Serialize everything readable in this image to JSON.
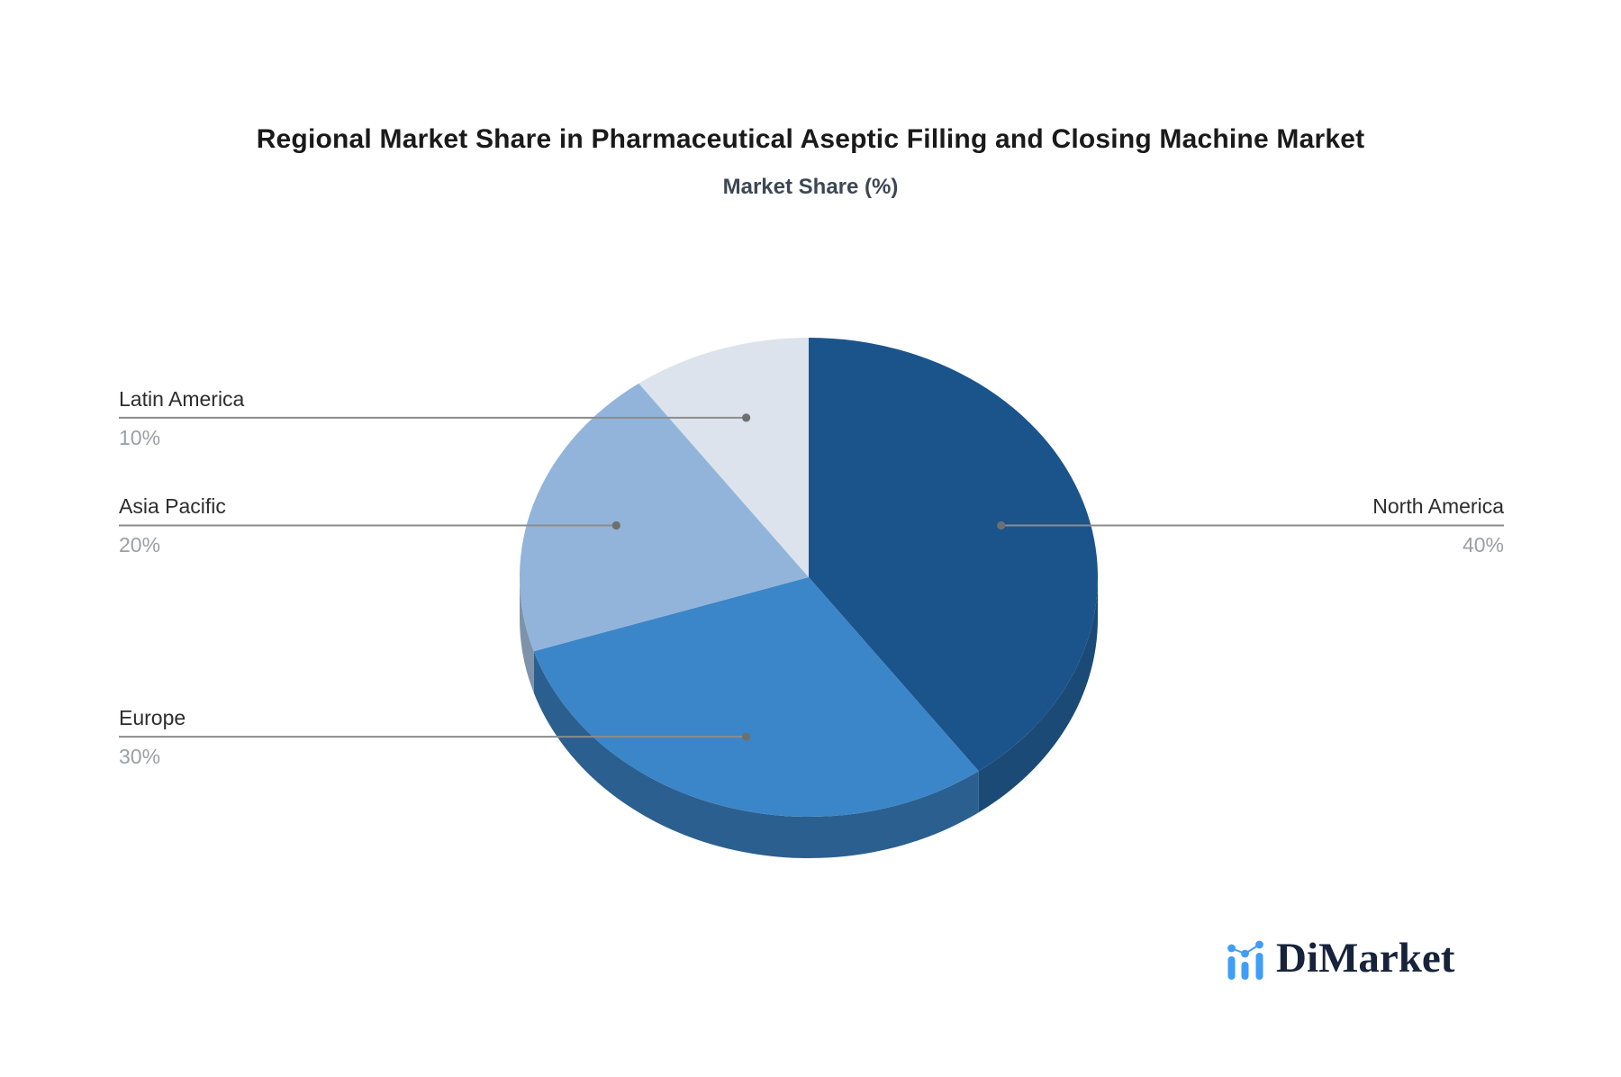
{
  "title": "Regional Market Share in Pharmaceutical Aseptic Filling and Closing Machine Market",
  "subtitle": "Market Share (%)",
  "chart_data": {
    "type": "pie",
    "style": "3d",
    "title": "Regional Market Share in Pharmaceutical Aseptic Filling and Closing Machine Market",
    "subtitle": "Market Share (%)",
    "unit": "%",
    "start_angle_deg": 0,
    "direction": "clockwise",
    "legend_position": "callout-labels",
    "slices": [
      {
        "label": "North America",
        "value": 40,
        "pct_label": "40%",
        "color": "#1b548b",
        "side_color": "#1a4a75"
      },
      {
        "label": "Europe",
        "value": 30,
        "pct_label": "30%",
        "color": "#3b86c8",
        "side_color": "#2a5f8f"
      },
      {
        "label": "Asia Pacific",
        "value": 20,
        "pct_label": "20%",
        "color": "#92b4da",
        "side_color": "#7e93aa"
      },
      {
        "label": "Latin America",
        "value": 10,
        "pct_label": "10%",
        "color": "#dce3ed",
        "side_color": "#bcc6d6"
      }
    ],
    "callout_line_color": "#8c8c8c",
    "callout_dot_color": "#6f6f6f"
  },
  "logo": {
    "text": "DiMarket",
    "icon": "bar-line-chart-icon",
    "icon_color": "#3f9ef5",
    "text_color": "#16233a"
  }
}
